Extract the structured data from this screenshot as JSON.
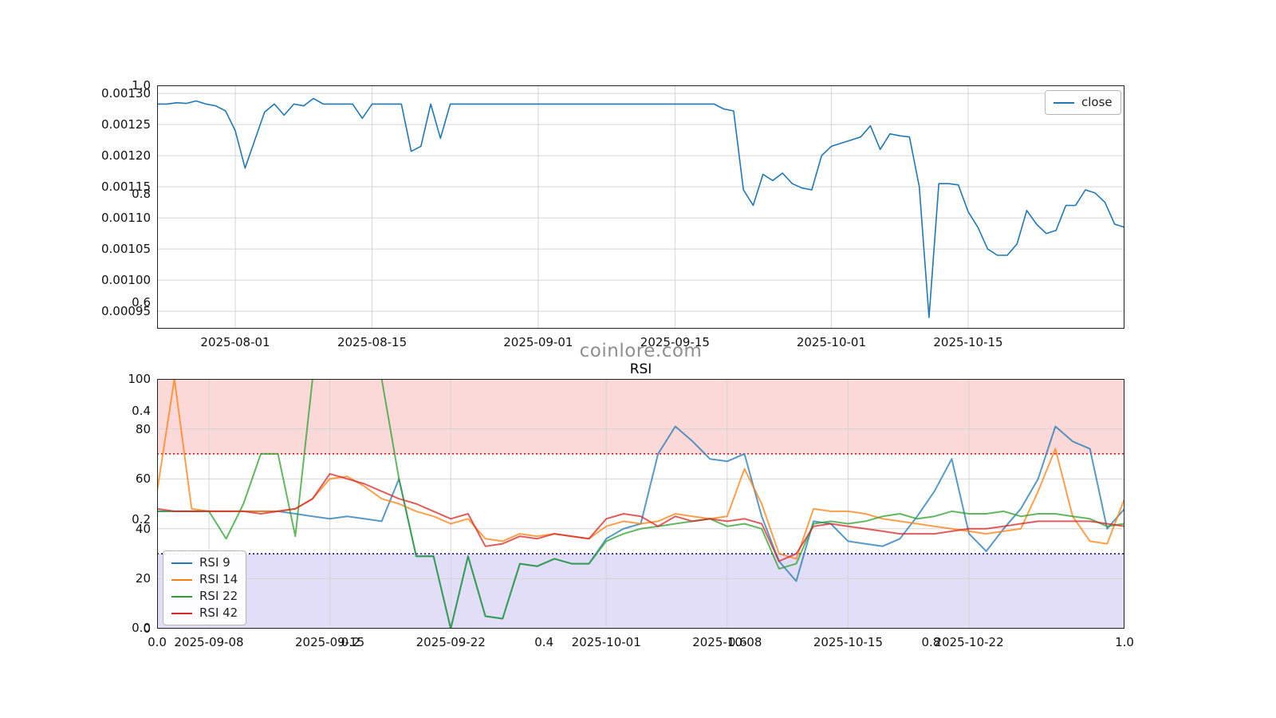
{
  "watermark": "coinlore.com",
  "colors": {
    "blue": "#1f77b4",
    "orange": "#ff7f0e",
    "green": "#2ca02c",
    "red": "#d62728",
    "grid": "#d4d4d4",
    "frame": "#222222",
    "overbought_fill": "#fbd9d9",
    "oversold_fill": "#e2def7",
    "overbought_line": "#dd0000",
    "oversold_line": "#00008b"
  },
  "hidden_axis": {
    "y_labels": [
      "1.0",
      "0.8",
      "0.6",
      "0.4",
      "0.2",
      "0.0"
    ],
    "x_labels": [
      "0.0",
      "0.2",
      "0.4",
      "0.6",
      "0.8",
      "1.0"
    ]
  },
  "chart_data": [
    {
      "id": "price",
      "type": "line",
      "title": "",
      "xlabel": "",
      "ylabel": "",
      "legend_pos": "top-right",
      "xlim": [
        0,
        99
      ],
      "ylim": [
        0.000922,
        0.001313
      ],
      "x_ticks": [
        {
          "label": "2025-08-01",
          "value": 8
        },
        {
          "label": "2025-08-15",
          "value": 22
        },
        {
          "label": "2025-09-01",
          "value": 39
        },
        {
          "label": "2025-09-15",
          "value": 53
        },
        {
          "label": "2025-10-01",
          "value": 69
        },
        {
          "label": "2025-10-15",
          "value": 83
        }
      ],
      "y_ticks": [
        {
          "label": "0.00095",
          "value": 0.00095
        },
        {
          "label": "0.00100",
          "value": 0.001
        },
        {
          "label": "0.00105",
          "value": 0.00105
        },
        {
          "label": "0.00110",
          "value": 0.0011
        },
        {
          "label": "0.00115",
          "value": 0.00115
        },
        {
          "label": "0.00120",
          "value": 0.0012
        },
        {
          "label": "0.00125",
          "value": 0.00125
        },
        {
          "label": "0.00130",
          "value": 0.0013
        }
      ],
      "series": [
        {
          "name": "close",
          "color_key": "blue",
          "width": 1.6,
          "opacity": 1,
          "values": [
            0.001283,
            0.001283,
            0.001285,
            0.001284,
            0.001288,
            0.001283,
            0.00128,
            0.001272,
            0.00124,
            0.00118,
            0.001225,
            0.00127,
            0.001283,
            0.001265,
            0.001283,
            0.00128,
            0.001292,
            0.001283,
            0.001283,
            0.001283,
            0.001283,
            0.00126,
            0.001283,
            0.001283,
            0.001283,
            0.001283,
            0.001207,
            0.001215,
            0.001283,
            0.001228,
            0.001283,
            0.001283,
            0.001283,
            0.001283,
            0.001283,
            0.001283,
            0.001283,
            0.001283,
            0.001283,
            0.001283,
            0.001283,
            0.001283,
            0.001283,
            0.001283,
            0.001283,
            0.001283,
            0.001283,
            0.001283,
            0.001283,
            0.001283,
            0.001283,
            0.001283,
            0.001283,
            0.001283,
            0.001283,
            0.001283,
            0.001283,
            0.001283,
            0.001275,
            0.001272,
            0.001145,
            0.00112,
            0.00117,
            0.00116,
            0.001172,
            0.001155,
            0.001148,
            0.001145,
            0.0012,
            0.001215,
            0.00122,
            0.001225,
            0.00123,
            0.001248,
            0.00121,
            0.001235,
            0.001232,
            0.00123,
            0.00115,
            0.00094,
            0.001155,
            0.001155,
            0.001153,
            0.00111,
            0.001085,
            0.00105,
            0.00104,
            0.00104,
            0.001058,
            0.001112,
            0.00109,
            0.001075,
            0.00108,
            0.00112,
            0.00112,
            0.001145,
            0.00114,
            0.001125,
            0.00109,
            0.001085
          ]
        }
      ]
    },
    {
      "id": "rsi",
      "type": "line",
      "title": "RSI",
      "xlabel": "",
      "ylabel": "",
      "legend_pos": "bottom-left",
      "xlim": [
        0,
        56
      ],
      "ylim": [
        0,
        100
      ],
      "overbought": 70,
      "oversold": 30,
      "bands": [
        {
          "name": "overbought-band",
          "from": 70,
          "to": 100,
          "color_key": "overbought_fill"
        },
        {
          "name": "oversold-band",
          "from": 0,
          "to": 30,
          "color_key": "oversold_fill"
        }
      ],
      "thresholds": [
        {
          "name": "overbought-threshold",
          "value": 70,
          "color_key": "overbought_line"
        },
        {
          "name": "oversold-threshold",
          "value": 30,
          "color_key": "oversold_line"
        }
      ],
      "x_ticks": [
        {
          "label": "2025-09-08",
          "value": 3
        },
        {
          "label": "2025-09-15",
          "value": 10
        },
        {
          "label": "2025-09-22",
          "value": 17
        },
        {
          "label": "2025-10-01",
          "value": 26
        },
        {
          "label": "2025-10-08",
          "value": 33
        },
        {
          "label": "2025-10-15",
          "value": 40
        },
        {
          "label": "2025-10-22",
          "value": 47
        }
      ],
      "y_ticks": [
        {
          "label": "0",
          "value": 0
        },
        {
          "label": "20",
          "value": 20
        },
        {
          "label": "40",
          "value": 40
        },
        {
          "label": "60",
          "value": 60
        },
        {
          "label": "80",
          "value": 80
        },
        {
          "label": "100",
          "value": 100
        }
      ],
      "series": [
        {
          "name": "RSI 9",
          "color_key": "blue",
          "width": 2,
          "opacity": 0.75,
          "values": [
            47,
            47,
            47,
            47,
            47,
            47,
            47,
            47,
            46,
            45,
            44,
            45,
            44,
            43,
            60,
            29,
            29,
            0,
            29,
            5,
            4,
            26,
            25,
            28,
            26,
            26,
            36,
            40,
            42,
            70,
            81,
            75,
            68,
            67,
            70,
            45,
            27,
            19,
            43,
            42,
            35,
            34,
            33,
            36,
            45,
            55,
            68,
            38,
            31,
            40,
            48,
            60,
            81,
            75,
            72,
            40,
            48
          ]
        },
        {
          "name": "RSI 14",
          "color_key": "orange",
          "width": 2,
          "opacity": 0.75,
          "values": [
            55,
            100,
            48,
            47,
            47,
            47,
            47,
            47,
            48,
            52,
            60,
            61,
            57,
            52,
            50,
            47,
            45,
            42,
            44,
            36,
            35,
            38,
            37,
            38,
            37,
            36,
            41,
            43,
            42,
            43,
            46,
            45,
            44,
            45,
            64,
            50,
            30,
            28,
            48,
            47,
            47,
            46,
            44,
            43,
            42,
            41,
            40,
            39,
            38,
            39,
            40,
            55,
            72,
            45,
            35,
            34,
            52
          ]
        },
        {
          "name": "RSI 22",
          "color_key": "green",
          "width": 2,
          "opacity": 0.75,
          "values": [
            47,
            47,
            47,
            47,
            36,
            50,
            70,
            70,
            37,
            100,
            100,
            100,
            100,
            100,
            60,
            29,
            29,
            0,
            29,
            5,
            4,
            26,
            25,
            28,
            26,
            26,
            35,
            38,
            40,
            41,
            42,
            43,
            44,
            41,
            42,
            40,
            24,
            26,
            42,
            43,
            42,
            43,
            45,
            46,
            44,
            45,
            47,
            46,
            46,
            47,
            45,
            46,
            46,
            45,
            44,
            41,
            42
          ]
        },
        {
          "name": "RSI 42",
          "color_key": "red",
          "width": 2,
          "opacity": 0.75,
          "values": [
            48,
            47,
            47,
            47,
            47,
            47,
            46,
            47,
            48,
            52,
            62,
            60,
            58,
            55,
            52,
            50,
            47,
            44,
            46,
            33,
            34,
            37,
            36,
            38,
            37,
            36,
            44,
            46,
            45,
            41,
            45,
            43,
            44,
            43,
            44,
            42,
            27,
            30,
            41,
            42,
            41,
            40,
            39,
            38,
            38,
            38,
            39,
            40,
            40,
            41,
            42,
            43,
            43,
            43,
            43,
            42,
            41
          ]
        }
      ]
    }
  ]
}
